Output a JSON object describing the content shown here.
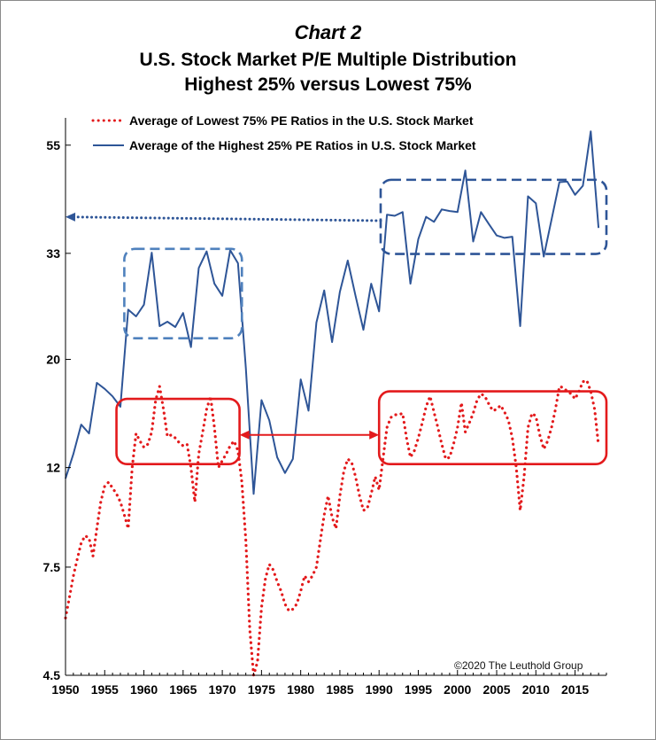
{
  "chart_data": {
    "type": "line",
    "title": "Chart 2",
    "subtitle": "U.S. Stock Market P/E Multiple Distribution",
    "subtitle2": "Highest 25% versus Lowest 75%",
    "xlabel": "",
    "ylabel": "",
    "scale": "log",
    "ylim": [
      4.5,
      60
    ],
    "xlim": [
      1950,
      2019
    ],
    "y_ticks": [
      4.5,
      7.5,
      12,
      20,
      33,
      55
    ],
    "y_tick_labels": [
      "4.5",
      "7.5",
      "12",
      "20",
      "33",
      "55"
    ],
    "x_ticks": [
      1950,
      1955,
      1960,
      1965,
      1970,
      1975,
      1980,
      1985,
      1990,
      1995,
      2000,
      2005,
      2010,
      2015
    ],
    "x_tick_labels": [
      "1950",
      "1955",
      "1960",
      "1965",
      "1970",
      "1975",
      "1980",
      "1985",
      "1990",
      "1995",
      "2000",
      "2005",
      "2010",
      "2015"
    ],
    "grid": false,
    "legend_position": "top-left",
    "annotation": "©2020 The Leuthold Group",
    "series": [
      {
        "name": "Average of Lowest 75% PE Ratios in the U.S. Stock Market",
        "color": "#e31a1c",
        "style": "dotted",
        "points": [
          [
            1950.0,
            5.9
          ],
          [
            1950.5,
            6.5
          ],
          [
            1951.0,
            7.2
          ],
          [
            1951.5,
            7.8
          ],
          [
            1952.0,
            8.4
          ],
          [
            1952.5,
            8.7
          ],
          [
            1953.0,
            8.6
          ],
          [
            1953.5,
            7.9
          ],
          [
            1954.0,
            9.0
          ],
          [
            1954.5,
            10.2
          ],
          [
            1955.0,
            11.0
          ],
          [
            1955.5,
            11.2
          ],
          [
            1956.0,
            10.9
          ],
          [
            1956.5,
            10.6
          ],
          [
            1957.0,
            10.2
          ],
          [
            1957.5,
            9.6
          ],
          [
            1958.0,
            9.0
          ],
          [
            1958.5,
            12.0
          ],
          [
            1959.0,
            14.1
          ],
          [
            1959.5,
            13.6
          ],
          [
            1960.0,
            13.2
          ],
          [
            1960.5,
            13.4
          ],
          [
            1961.0,
            14.2
          ],
          [
            1961.5,
            16.5
          ],
          [
            1962.0,
            17.6
          ],
          [
            1962.5,
            15.8
          ],
          [
            1963.0,
            13.9
          ],
          [
            1963.5,
            14.0
          ],
          [
            1964.0,
            13.8
          ],
          [
            1964.5,
            13.5
          ],
          [
            1965.0,
            13.3
          ],
          [
            1965.5,
            13.4
          ],
          [
            1966.0,
            12.0
          ],
          [
            1966.5,
            10.2
          ],
          [
            1967.0,
            12.8
          ],
          [
            1967.5,
            14.2
          ],
          [
            1968.0,
            15.8
          ],
          [
            1968.5,
            16.8
          ],
          [
            1969.0,
            14.5
          ],
          [
            1969.5,
            12.0
          ],
          [
            1970.0,
            12.4
          ],
          [
            1970.5,
            12.8
          ],
          [
            1971.0,
            13.3
          ],
          [
            1971.5,
            13.6
          ],
          [
            1972.0,
            13.0
          ],
          [
            1972.5,
            11.2
          ],
          [
            1973.0,
            8.5
          ],
          [
            1973.5,
            5.6
          ],
          [
            1974.0,
            4.5
          ],
          [
            1974.5,
            4.8
          ],
          [
            1975.0,
            6.2
          ],
          [
            1975.5,
            7.1
          ],
          [
            1976.0,
            7.6
          ],
          [
            1976.5,
            7.4
          ],
          [
            1977.0,
            7.0
          ],
          [
            1977.5,
            6.7
          ],
          [
            1978.0,
            6.3
          ],
          [
            1978.5,
            6.1
          ],
          [
            1979.0,
            6.15
          ],
          [
            1979.5,
            6.3
          ],
          [
            1980.0,
            6.7
          ],
          [
            1980.5,
            7.2
          ],
          [
            1981.0,
            7.0
          ],
          [
            1981.5,
            7.2
          ],
          [
            1982.0,
            7.5
          ],
          [
            1982.5,
            8.5
          ],
          [
            1983.0,
            9.6
          ],
          [
            1983.5,
            10.5
          ],
          [
            1984.0,
            9.5
          ],
          [
            1984.5,
            9.0
          ],
          [
            1985.0,
            10.5
          ],
          [
            1985.5,
            11.8
          ],
          [
            1986.0,
            12.5
          ],
          [
            1986.5,
            12.3
          ],
          [
            1987.0,
            11.5
          ],
          [
            1987.5,
            10.5
          ],
          [
            1988.0,
            9.8
          ],
          [
            1988.5,
            9.9
          ],
          [
            1989.0,
            10.6
          ],
          [
            1989.5,
            11.5
          ],
          [
            1990.0,
            10.8
          ],
          [
            1990.5,
            12.5
          ],
          [
            1991.0,
            14.5
          ],
          [
            1991.5,
            15.2
          ],
          [
            1992.0,
            15.4
          ],
          [
            1992.5,
            15.4
          ],
          [
            1993.0,
            15.5
          ],
          [
            1993.5,
            13.8
          ],
          [
            1994.0,
            12.6
          ],
          [
            1994.5,
            13.0
          ],
          [
            1995.0,
            13.8
          ],
          [
            1995.5,
            14.8
          ],
          [
            1996.0,
            16.0
          ],
          [
            1996.5,
            16.8
          ],
          [
            1997.0,
            15.6
          ],
          [
            1997.5,
            14.5
          ],
          [
            1998.0,
            13.4
          ],
          [
            1998.5,
            12.5
          ],
          [
            1999.0,
            12.6
          ],
          [
            1999.5,
            13.4
          ],
          [
            2000.0,
            14.5
          ],
          [
            2000.5,
            16.3
          ],
          [
            2001.0,
            14.2
          ],
          [
            2001.5,
            14.8
          ],
          [
            2002.0,
            15.5
          ],
          [
            2002.5,
            16.5
          ],
          [
            2003.0,
            17.0
          ],
          [
            2003.5,
            16.8
          ],
          [
            2004.0,
            16.2
          ],
          [
            2004.5,
            15.7
          ],
          [
            2005.0,
            15.8
          ],
          [
            2005.5,
            16.1
          ],
          [
            2006.0,
            15.6
          ],
          [
            2006.5,
            15.0
          ],
          [
            2007.0,
            13.8
          ],
          [
            2007.5,
            12.0
          ],
          [
            2008.0,
            9.8
          ],
          [
            2008.5,
            11.5
          ],
          [
            2009.0,
            14.5
          ],
          [
            2009.5,
            15.5
          ],
          [
            2010.0,
            15.3
          ],
          [
            2010.5,
            14.0
          ],
          [
            2011.0,
            13.1
          ],
          [
            2011.5,
            13.6
          ],
          [
            2012.0,
            14.5
          ],
          [
            2012.5,
            15.8
          ],
          [
            2013.0,
            17.6
          ],
          [
            2013.5,
            17.5
          ],
          [
            2014.0,
            17.2
          ],
          [
            2014.5,
            17.0
          ],
          [
            2015.0,
            16.6
          ],
          [
            2015.5,
            17.2
          ],
          [
            2016.0,
            18.0
          ],
          [
            2016.5,
            18.1
          ],
          [
            2017.0,
            17.2
          ],
          [
            2017.5,
            15.8
          ],
          [
            2018.0,
            13.3
          ]
        ]
      },
      {
        "name": "Average of the Highest 25% PE Ratios in U.S. Stock Market",
        "color": "#2e5597",
        "style": "solid",
        "points": [
          [
            1950,
            11.4
          ],
          [
            1951,
            12.8
          ],
          [
            1952,
            14.7
          ],
          [
            1953,
            14.1
          ],
          [
            1954,
            17.9
          ],
          [
            1955,
            17.4
          ],
          [
            1956,
            16.8
          ],
          [
            1957,
            16.0
          ],
          [
            1958,
            25.3
          ],
          [
            1959,
            24.5
          ],
          [
            1960,
            25.9
          ],
          [
            1961,
            33.1
          ],
          [
            1962,
            23.4
          ],
          [
            1963,
            23.9
          ],
          [
            1964,
            23.3
          ],
          [
            1965,
            24.9
          ],
          [
            1966,
            21.2
          ],
          [
            1967,
            30.8
          ],
          [
            1968,
            33.3
          ],
          [
            1969,
            28.6
          ],
          [
            1970,
            27.0
          ],
          [
            1971,
            33.5
          ],
          [
            1972,
            31.5
          ],
          [
            1973,
            19.2
          ],
          [
            1974,
            10.6
          ],
          [
            1975,
            16.5
          ],
          [
            1976,
            15.0
          ],
          [
            1977,
            12.6
          ],
          [
            1978,
            11.7
          ],
          [
            1979,
            12.5
          ],
          [
            1980,
            18.2
          ],
          [
            1981,
            15.7
          ],
          [
            1982,
            23.8
          ],
          [
            1983,
            27.7
          ],
          [
            1984,
            21.7
          ],
          [
            1985,
            27.5
          ],
          [
            1986,
            31.9
          ],
          [
            1987,
            27.0
          ],
          [
            1988,
            23.0
          ],
          [
            1989,
            28.6
          ],
          [
            1990,
            25.1
          ],
          [
            1991,
            39.6
          ],
          [
            1992,
            39.4
          ],
          [
            1993,
            40.1
          ],
          [
            1994,
            28.6
          ],
          [
            1995,
            35.3
          ],
          [
            1996,
            39.2
          ],
          [
            1997,
            38.3
          ],
          [
            1998,
            40.6
          ],
          [
            1999,
            40.3
          ],
          [
            2000,
            40.1
          ],
          [
            2001,
            48.8
          ],
          [
            2002,
            34.9
          ],
          [
            2003,
            40.1
          ],
          [
            2004,
            37.9
          ],
          [
            2005,
            35.9
          ],
          [
            2006,
            35.5
          ],
          [
            2007,
            35.7
          ],
          [
            2008,
            23.4
          ],
          [
            2009,
            43.2
          ],
          [
            2010,
            41.8
          ],
          [
            2011,
            32.5
          ],
          [
            2012,
            38.7
          ],
          [
            2013,
            46.2
          ],
          [
            2014,
            46.3
          ],
          [
            2015,
            43.5
          ],
          [
            2016,
            45.4
          ],
          [
            2017,
            58.7
          ],
          [
            2018,
            37.2
          ]
        ]
      }
    ],
    "shapes": [
      {
        "name": "range-box-high-1958-1972",
        "kind": "dashed-box",
        "color": "#4f81bd",
        "x0": 1957.5,
        "x1": 1972.5,
        "y0": 22.1,
        "y1": 33.7
      },
      {
        "name": "range-box-high-1991-2018",
        "kind": "dashed-box",
        "color": "#2e5597",
        "x0": 1990.2,
        "x1": 2019.0,
        "y0": 32.9,
        "y1": 46.7
      },
      {
        "name": "range-box-low-1958-1972",
        "kind": "solid-box",
        "color": "#e31a1c",
        "x0": 1956.5,
        "x1": 1972.2,
        "y0": 12.2,
        "y1": 16.6
      },
      {
        "name": "range-box-low-1991-2018",
        "kind": "solid-box",
        "color": "#e31a1c",
        "x0": 1990.0,
        "x1": 2019.0,
        "y0": 12.2,
        "y1": 17.2
      }
    ],
    "arrows": [
      {
        "name": "arrow-high-to-axis",
        "color": "#2e5597",
        "style": "dotted",
        "from": [
          1990.2,
          38.5
        ],
        "to": [
          1950.0,
          39.2
        ],
        "heads": "end"
      },
      {
        "name": "arrow-low-comparison",
        "color": "#e31a1c",
        "style": "solid",
        "from": [
          1972.2,
          14.0
        ],
        "to": [
          1990.0,
          14.0
        ],
        "heads": "both"
      }
    ]
  }
}
